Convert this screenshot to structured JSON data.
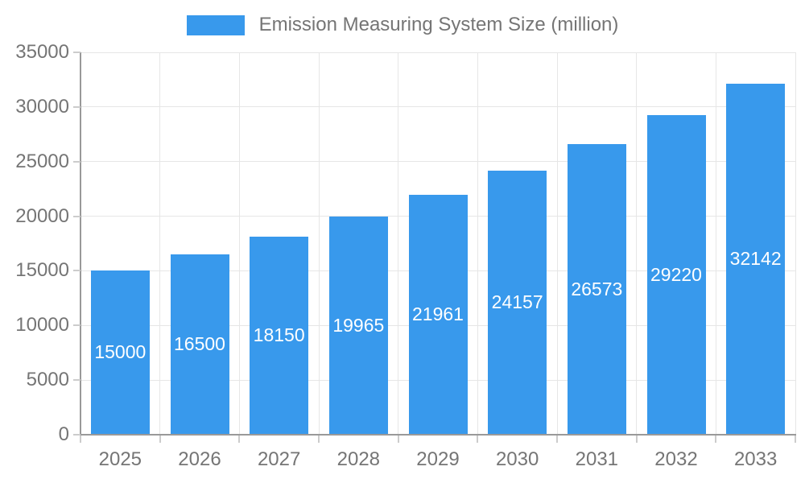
{
  "chart_data": {
    "type": "bar",
    "title": "",
    "legend_label": "Emission Measuring System Size (million)",
    "legend_position": "top",
    "series": [
      {
        "name": "Emission Measuring System Size (million)",
        "values": [
          15000,
          16500,
          18150,
          19965,
          21961,
          24157,
          26573,
          29220,
          32142
        ]
      }
    ],
    "categories": [
      "2025",
      "2026",
      "2027",
      "2028",
      "2029",
      "2030",
      "2031",
      "2032",
      "2033"
    ],
    "value_labels": [
      "15000",
      "16500",
      "18150",
      "19965",
      "21961",
      "24157",
      "26573",
      "29220",
      "32142"
    ],
    "xlabel": "",
    "ylabel": "",
    "ylim": [
      0,
      35000
    ],
    "ytick_step": 5000,
    "ytick_labels": [
      "0",
      "5000",
      "10000",
      "15000",
      "20000",
      "25000",
      "30000",
      "35000"
    ],
    "grid": true,
    "value_label_position": "inside-center",
    "colors": {
      "bar": "#3899ec",
      "grid": "#e6e6e6",
      "axis": "#999999",
      "tick": "#cccccc",
      "axis_text": "#757575",
      "value_text": "#ffffff",
      "background": "#ffffff"
    }
  }
}
